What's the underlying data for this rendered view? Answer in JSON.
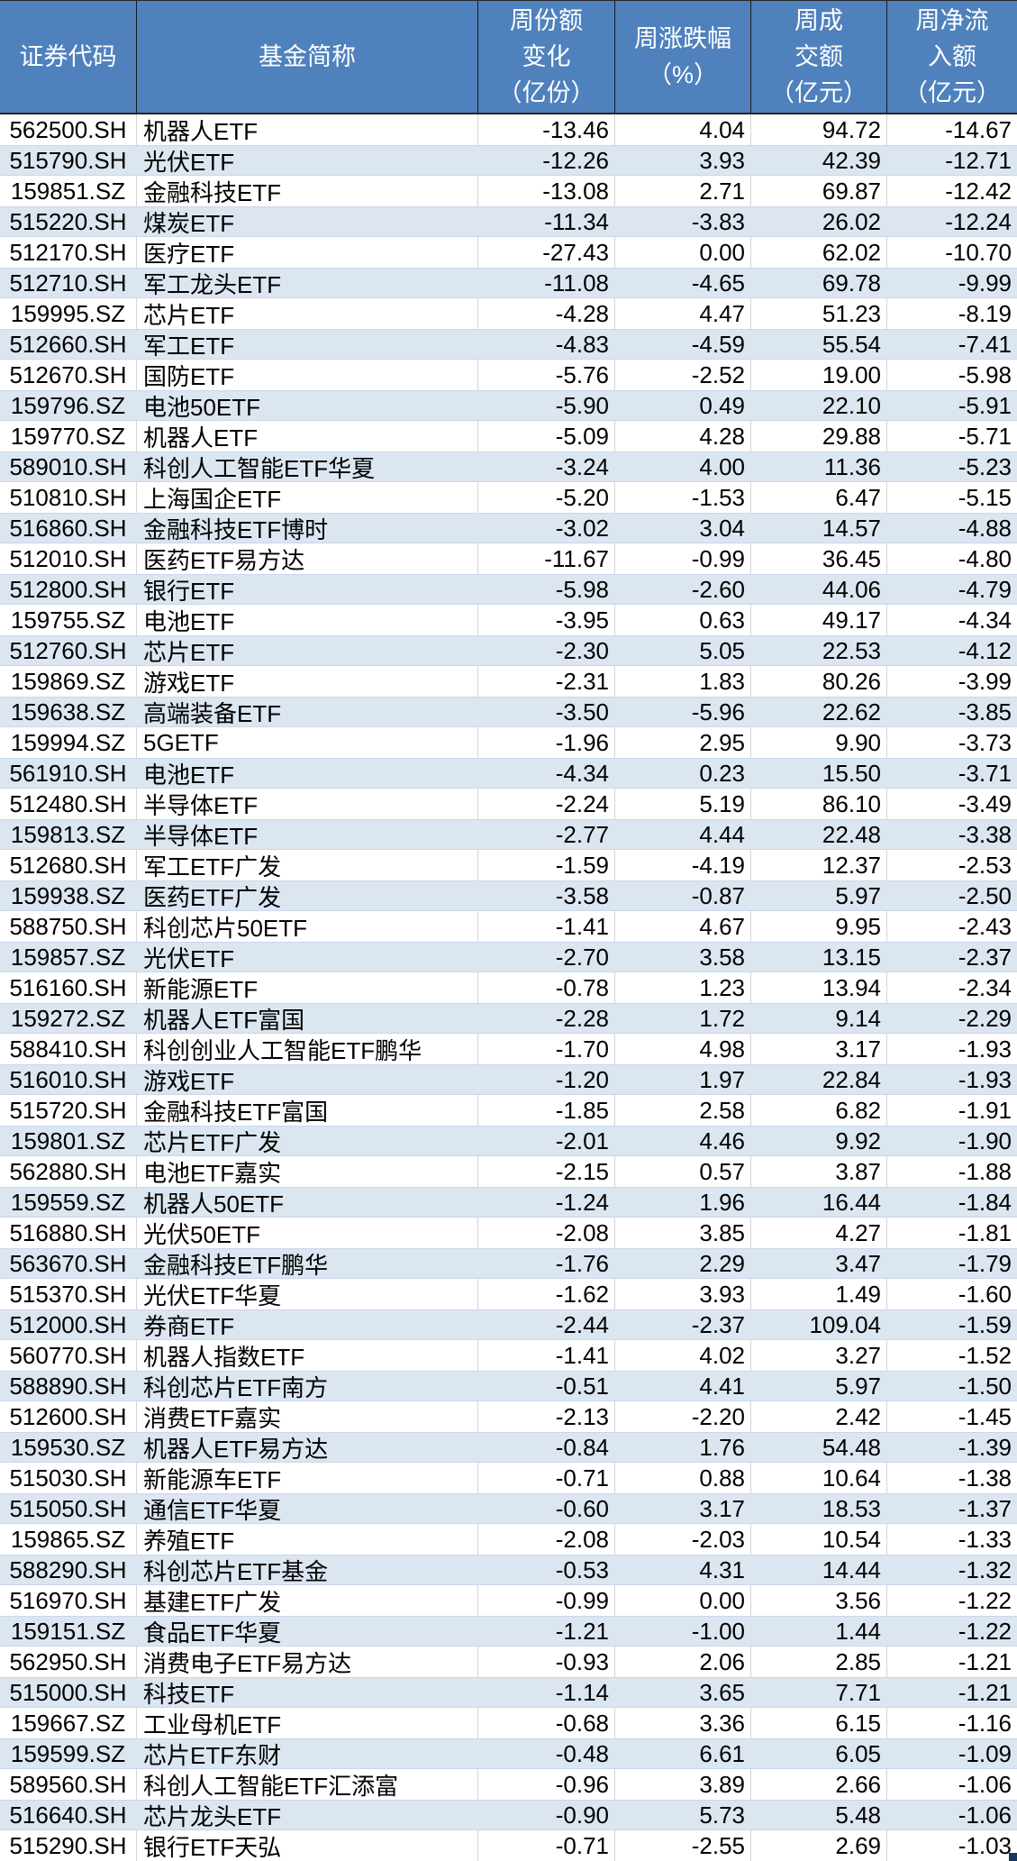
{
  "chart_data": {
    "type": "table",
    "columns": [
      {
        "key": "code",
        "label": "证券代码",
        "header_lines": [
          "证券代码"
        ]
      },
      {
        "key": "name",
        "label": "基金简称",
        "header_lines": [
          "基金简称"
        ]
      },
      {
        "key": "share_change",
        "label": "周份额变化（亿份）",
        "header_lines": [
          "周份额",
          "变化",
          "（亿份）"
        ]
      },
      {
        "key": "pct_change",
        "label": "周涨跌幅（%）",
        "header_lines": [
          "周涨跌幅",
          "（%）"
        ]
      },
      {
        "key": "turnover",
        "label": "周成交额（亿元）",
        "header_lines": [
          "周成",
          "交额",
          "（亿元）"
        ]
      },
      {
        "key": "net_inflow",
        "label": "周净流入额（亿元）",
        "header_lines": [
          "周净流",
          "入额",
          "（亿元）"
        ]
      }
    ],
    "rows": [
      [
        "562500.SH",
        "机器人ETF",
        "-13.46",
        "4.04",
        "94.72",
        "-14.67"
      ],
      [
        "515790.SH",
        "光伏ETF",
        "-12.26",
        "3.93",
        "42.39",
        "-12.71"
      ],
      [
        "159851.SZ",
        "金融科技ETF",
        "-13.08",
        "2.71",
        "69.87",
        "-12.42"
      ],
      [
        "515220.SH",
        "煤炭ETF",
        "-11.34",
        "-3.83",
        "26.02",
        "-12.24"
      ],
      [
        "512170.SH",
        "医疗ETF",
        "-27.43",
        "0.00",
        "62.02",
        "-10.70"
      ],
      [
        "512710.SH",
        "军工龙头ETF",
        "-11.08",
        "-4.65",
        "69.78",
        "-9.99"
      ],
      [
        "159995.SZ",
        "芯片ETF",
        "-4.28",
        "4.47",
        "51.23",
        "-8.19"
      ],
      [
        "512660.SH",
        "军工ETF",
        "-4.83",
        "-4.59",
        "55.54",
        "-7.41"
      ],
      [
        "512670.SH",
        "国防ETF",
        "-5.76",
        "-2.52",
        "19.00",
        "-5.98"
      ],
      [
        "159796.SZ",
        "电池50ETF",
        "-5.90",
        "0.49",
        "22.10",
        "-5.91"
      ],
      [
        "159770.SZ",
        "机器人ETF",
        "-5.09",
        "4.28",
        "29.88",
        "-5.71"
      ],
      [
        "589010.SH",
        "科创人工智能ETF华夏",
        "-3.24",
        "4.00",
        "11.36",
        "-5.23"
      ],
      [
        "510810.SH",
        "上海国企ETF",
        "-5.20",
        "-1.53",
        "6.47",
        "-5.15"
      ],
      [
        "516860.SH",
        "金融科技ETF博时",
        "-3.02",
        "3.04",
        "14.57",
        "-4.88"
      ],
      [
        "512010.SH",
        "医药ETF易方达",
        "-11.67",
        "-0.99",
        "36.45",
        "-4.80"
      ],
      [
        "512800.SH",
        "银行ETF",
        "-5.98",
        "-2.60",
        "44.06",
        "-4.79"
      ],
      [
        "159755.SZ",
        "电池ETF",
        "-3.95",
        "0.63",
        "49.17",
        "-4.34"
      ],
      [
        "512760.SH",
        "芯片ETF",
        "-2.30",
        "5.05",
        "22.53",
        "-4.12"
      ],
      [
        "159869.SZ",
        "游戏ETF",
        "-2.31",
        "1.83",
        "80.26",
        "-3.99"
      ],
      [
        "159638.SZ",
        "高端装备ETF",
        "-3.50",
        "-5.96",
        "22.62",
        "-3.85"
      ],
      [
        "159994.SZ",
        "5GETF",
        "-1.96",
        "2.95",
        "9.90",
        "-3.73"
      ],
      [
        "561910.SH",
        "电池ETF",
        "-4.34",
        "0.23",
        "15.50",
        "-3.71"
      ],
      [
        "512480.SH",
        "半导体ETF",
        "-2.24",
        "5.19",
        "86.10",
        "-3.49"
      ],
      [
        "159813.SZ",
        "半导体ETF",
        "-2.77",
        "4.44",
        "22.48",
        "-3.38"
      ],
      [
        "512680.SH",
        "军工ETF广发",
        "-1.59",
        "-4.19",
        "12.37",
        "-2.53"
      ],
      [
        "159938.SZ",
        "医药ETF广发",
        "-3.58",
        "-0.87",
        "5.97",
        "-2.50"
      ],
      [
        "588750.SH",
        "科创芯片50ETF",
        "-1.41",
        "4.67",
        "9.95",
        "-2.43"
      ],
      [
        "159857.SZ",
        "光伏ETF",
        "-2.70",
        "3.58",
        "13.15",
        "-2.37"
      ],
      [
        "516160.SH",
        "新能源ETF",
        "-0.78",
        "1.23",
        "13.94",
        "-2.34"
      ],
      [
        "159272.SZ",
        "机器人ETF富国",
        "-2.28",
        "1.72",
        "9.14",
        "-2.29"
      ],
      [
        "588410.SH",
        "科创创业人工智能ETF鹏华",
        "-1.70",
        "4.98",
        "3.17",
        "-1.93"
      ],
      [
        "516010.SH",
        "游戏ETF",
        "-1.20",
        "1.97",
        "22.84",
        "-1.93"
      ],
      [
        "515720.SH",
        "金融科技ETF富国",
        "-1.85",
        "2.58",
        "6.82",
        "-1.91"
      ],
      [
        "159801.SZ",
        "芯片ETF广发",
        "-2.01",
        "4.46",
        "9.92",
        "-1.90"
      ],
      [
        "562880.SH",
        "电池ETF嘉实",
        "-2.15",
        "0.57",
        "3.87",
        "-1.88"
      ],
      [
        "159559.SZ",
        "机器人50ETF",
        "-1.24",
        "1.96",
        "16.44",
        "-1.84"
      ],
      [
        "516880.SH",
        "光伏50ETF",
        "-2.08",
        "3.85",
        "4.27",
        "-1.81"
      ],
      [
        "563670.SH",
        "金融科技ETF鹏华",
        "-1.76",
        "2.29",
        "3.47",
        "-1.79"
      ],
      [
        "515370.SH",
        "光伏ETF华夏",
        "-1.62",
        "3.93",
        "1.49",
        "-1.60"
      ],
      [
        "512000.SH",
        "券商ETF",
        "-2.44",
        "-2.37",
        "109.04",
        "-1.59"
      ],
      [
        "560770.SH",
        "机器人指数ETF",
        "-1.41",
        "4.02",
        "3.27",
        "-1.52"
      ],
      [
        "588890.SH",
        "科创芯片ETF南方",
        "-0.51",
        "4.41",
        "5.97",
        "-1.50"
      ],
      [
        "512600.SH",
        "消费ETF嘉实",
        "-2.13",
        "-2.20",
        "2.42",
        "-1.45"
      ],
      [
        "159530.SZ",
        "机器人ETF易方达",
        "-0.84",
        "1.76",
        "54.48",
        "-1.39"
      ],
      [
        "515030.SH",
        "新能源车ETF",
        "-0.71",
        "0.88",
        "10.64",
        "-1.38"
      ],
      [
        "515050.SH",
        "通信ETF华夏",
        "-0.60",
        "3.17",
        "18.53",
        "-1.37"
      ],
      [
        "159865.SZ",
        "养殖ETF",
        "-2.08",
        "-2.03",
        "10.54",
        "-1.33"
      ],
      [
        "588290.SH",
        "科创芯片ETF基金",
        "-0.53",
        "4.31",
        "14.44",
        "-1.32"
      ],
      [
        "516970.SH",
        "基建ETF广发",
        "-0.99",
        "0.00",
        "3.56",
        "-1.22"
      ],
      [
        "159151.SZ",
        "食品ETF华夏",
        "-1.21",
        "-1.00",
        "1.44",
        "-1.22"
      ],
      [
        "562950.SH",
        "消费电子ETF易方达",
        "-0.93",
        "2.06",
        "2.85",
        "-1.21"
      ],
      [
        "515000.SH",
        "科技ETF",
        "-1.14",
        "3.65",
        "7.71",
        "-1.21"
      ],
      [
        "159667.SZ",
        "工业母机ETF",
        "-0.68",
        "3.36",
        "6.15",
        "-1.16"
      ],
      [
        "159599.SZ",
        "芯片ETF东财",
        "-0.48",
        "6.61",
        "6.05",
        "-1.09"
      ],
      [
        "589560.SH",
        "科创人工智能ETF汇添富",
        "-0.96",
        "3.89",
        "2.66",
        "-1.06"
      ],
      [
        "516640.SH",
        "芯片龙头ETF",
        "-0.90",
        "5.73",
        "5.48",
        "-1.06"
      ],
      [
        "515290.SH",
        "银行ETF天弘",
        "-0.71",
        "-2.55",
        "2.69",
        "-1.03"
      ]
    ],
    "layout_hints": {
      "banded_rows": true,
      "grid": true,
      "legend_position": "none"
    }
  },
  "colors": {
    "header_bg": "#4F81BD",
    "header_text": "#FFFFFF",
    "header_border": "#1A1A1A",
    "band_row_bg": "#DCE6F1",
    "plain_row_bg": "#FFFFFF",
    "body_text": "#000000",
    "grid_line": "#D5D5D5",
    "selection_handle": "#17375E"
  }
}
